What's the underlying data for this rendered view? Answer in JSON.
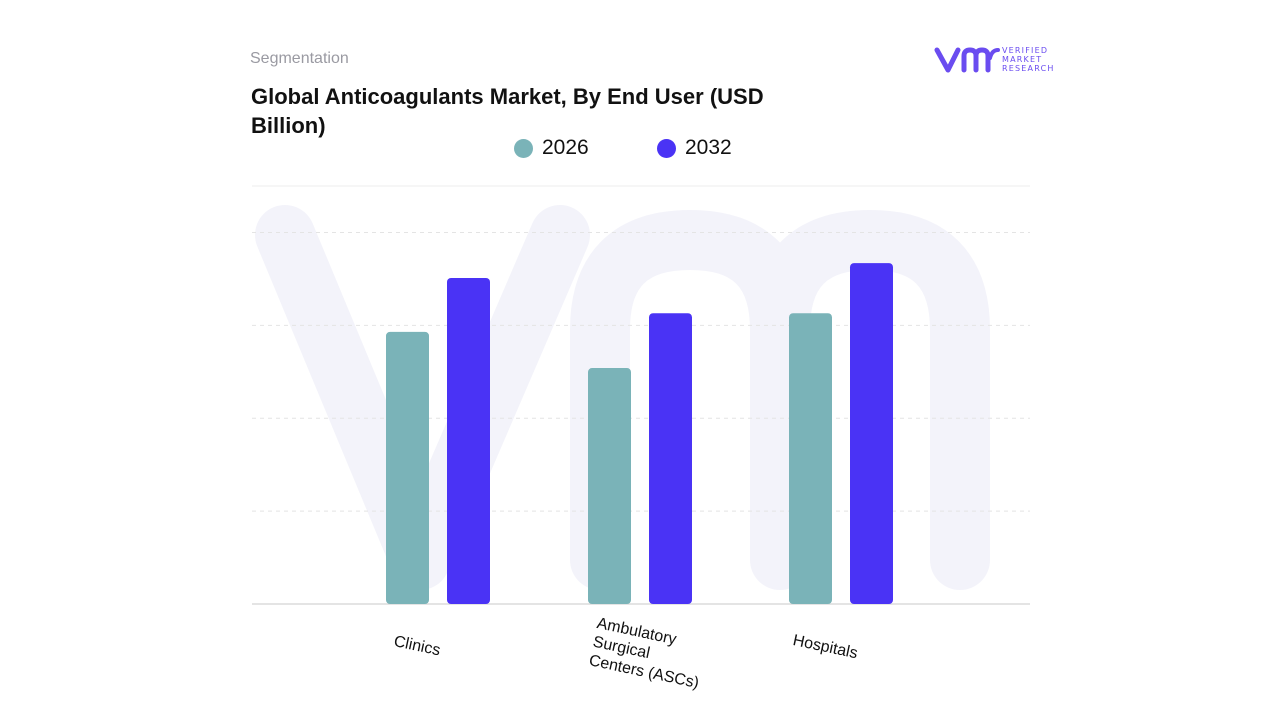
{
  "header": {
    "section": "Segmentation",
    "title": "Global Anticoagulants Market, By End User (USD Billion)"
  },
  "logo": {
    "line1": "VERIFIED",
    "line2": "MARKET",
    "line3": "RESEARCH",
    "color": "#6a4cf0"
  },
  "chart_data": {
    "type": "bar",
    "title": "Global Anticoagulants Market, By End User (USD Billion)",
    "xlabel": "",
    "ylabel": "",
    "categories": [
      "Clinics",
      "Ambulatory Surgical Centers (ASCs)",
      "Hospitals"
    ],
    "category_labels": [
      "Clinics",
      "Ambulatory\nSurgical\nCenters (ASCs)",
      "Hospitals"
    ],
    "series": [
      {
        "name": "2026",
        "color": "#7ab3b8",
        "values": [
          2.93,
          2.54,
          3.13
        ]
      },
      {
        "name": "2032",
        "color": "#4a33f5",
        "values": [
          3.51,
          3.13,
          3.67
        ]
      }
    ],
    "ylim": [
      0,
      4.5
    ],
    "grid": true,
    "legend": "top-center",
    "y_tick_labels_shown": false
  }
}
